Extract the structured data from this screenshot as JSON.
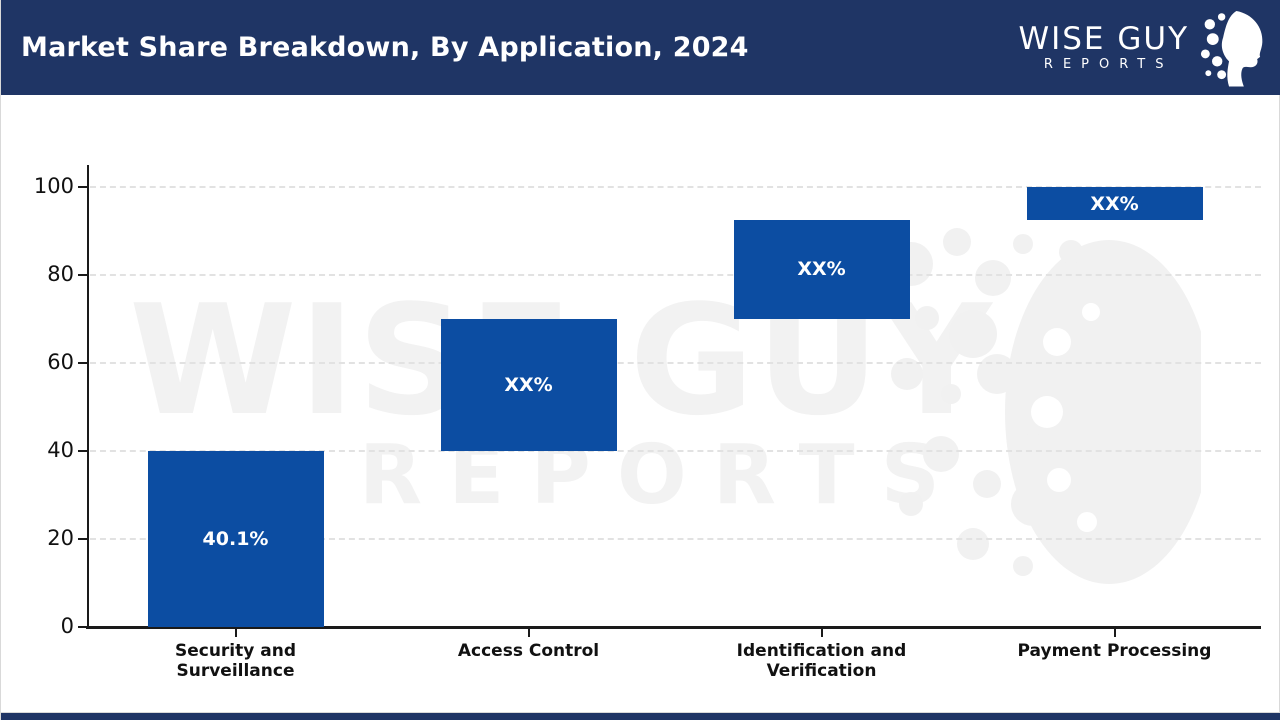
{
  "header": {
    "title": "Market Share Breakdown, By Application, 2024",
    "brand_line1": "WISE GUY",
    "brand_line2": "REPORTS",
    "bg_color": "#1f3565"
  },
  "watermark": {
    "line1": "WISE GUY",
    "line2": "REPORTS"
  },
  "chart_data": {
    "type": "bar",
    "variant": "waterfall",
    "title": "Market Share Breakdown, By Application, 2024",
    "categories": [
      "Security and Surveillance",
      "Access Control",
      "Identification and Verification",
      "Payment Processing"
    ],
    "category_lines": [
      [
        "Security and",
        "Surveillance"
      ],
      [
        "Access Control"
      ],
      [
        "Identification and",
        "Verification"
      ],
      [
        "Payment Processing"
      ]
    ],
    "segments": [
      {
        "category": "Security and Surveillance",
        "start": 0,
        "end": 40.1,
        "label": "40.1%"
      },
      {
        "category": "Access Control",
        "start": 40.1,
        "end": 70.1,
        "label": "XX%"
      },
      {
        "category": "Identification and Verification",
        "start": 70.1,
        "end": 92.5,
        "label": "XX%"
      },
      {
        "category": "Payment Processing",
        "start": 92.5,
        "end": 100,
        "label": "XX%"
      }
    ],
    "ylim": [
      0,
      100
    ],
    "yticks": [
      0,
      20,
      40,
      60,
      80,
      100
    ],
    "xlabel": "",
    "ylabel": "",
    "grid": "horizontal-dashed",
    "legend": "none",
    "bar_color": "#0c4da2",
    "bar_label_color": "#ffffff",
    "axis_color": "#1a1a1a",
    "gridline_color": "#e2e2e2",
    "watermark_color": "#f2f2f2"
  }
}
